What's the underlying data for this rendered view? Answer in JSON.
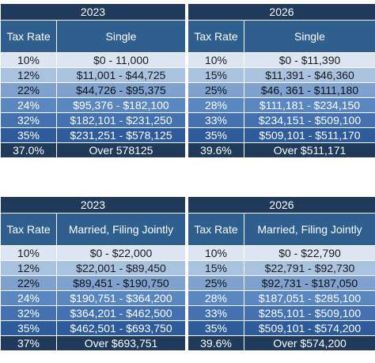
{
  "tables": [
    {
      "left_year": "2023",
      "right_year": "2026",
      "left_headers": [
        "Tax Rate",
        "Single"
      ],
      "right_headers": [
        "Tax Rate",
        "Single"
      ],
      "rows": [
        [
          "10%",
          "$0 - 11,000",
          "10%",
          "$0 - $11,390"
        ],
        [
          "12%",
          "$11,001 - $44,725",
          "15%",
          "$11,391 - $46,360"
        ],
        [
          "22%",
          "$44,726 - $95,375",
          "25%",
          "$46, 361 - $111,180"
        ],
        [
          "24%",
          "$95,376 - $182,100",
          "28%",
          "$111,181 - $234,150"
        ],
        [
          "32%",
          "$182,101 - $231,250",
          "33%",
          "$234,151 - $509,100"
        ],
        [
          "35%",
          "$231,251 - $578,125",
          "35%",
          "$509,101 - $511,170"
        ],
        [
          "37.0%",
          "Over 578125",
          "39.6%",
          "Over $511,171"
        ]
      ]
    },
    {
      "left_year": "2023",
      "right_year": "2026",
      "left_headers": [
        "Tax Rate",
        "Married, Filing Jointly"
      ],
      "right_headers": [
        "Tax Rate",
        "Married, Filing Jointly"
      ],
      "rows": [
        [
          "10%",
          "$0 - $22,000",
          "10%",
          "$0 - $22,790"
        ],
        [
          "12%",
          "$22,001 - $89,450",
          "15%",
          "$22,791 - $92,730"
        ],
        [
          "22%",
          "$89,451 - $190,750",
          "25%",
          "$92,731 - $187,050"
        ],
        [
          "24%",
          "$190,751 - $364,200",
          "28%",
          "$187,051 - $285,100"
        ],
        [
          "32%",
          "$364,201 - $462,500",
          "33%",
          "$285,101 - $509,100"
        ],
        [
          "35%",
          "$462,501 - $693,750",
          "35%",
          "$509,101 - $574,200"
        ],
        [
          "37%",
          "Over $693,751",
          "39.6%",
          "Over $574,200"
        ]
      ]
    }
  ]
}
